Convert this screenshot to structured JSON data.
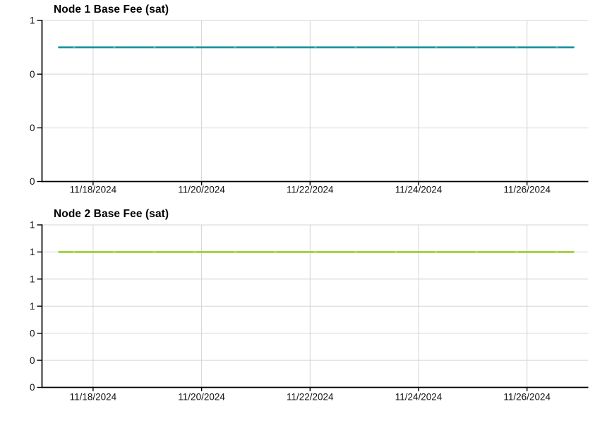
{
  "page": {
    "background_color": "#ffffff",
    "description": "Two stacked line charts of Lightning node base fees over time"
  },
  "colors": {
    "axis": "#000000",
    "gridline": "#d4d4d4",
    "tick_label": "#111111",
    "node1_line": "#12909d",
    "node2_line": "#98cb2f"
  },
  "chart_data": [
    {
      "type": "line",
      "title": "Node 1 Base Fee (sat)",
      "x_tick_labels": [
        "11/18/2024",
        "11/20/2024",
        "11/22/2024",
        "11/24/2024",
        "11/26/2024"
      ],
      "y_axis": {
        "min": 0,
        "max": 0.6,
        "tick_step": 0.2,
        "tick_labels_top_to_bottom": [
          "1",
          "0",
          "0",
          "0"
        ]
      },
      "grid": true,
      "legend_position": "none",
      "series": [
        {
          "name": "Node 1 base fee",
          "color": "#12909d",
          "constant_value": 0.5
        }
      ]
    },
    {
      "type": "line",
      "title": "Node 2 Base Fee (sat)",
      "x_tick_labels": [
        "11/18/2024",
        "11/20/2024",
        "11/22/2024",
        "11/24/2024",
        "11/26/2024"
      ],
      "y_axis": {
        "min": 0,
        "max": 1.2,
        "tick_step": 0.2,
        "tick_labels_top_to_bottom": [
          "1",
          "1",
          "1",
          "1",
          "0",
          "0",
          "0"
        ]
      },
      "grid": true,
      "legend_position": "none",
      "series": [
        {
          "name": "Node 2 base fee",
          "color": "#98cb2f",
          "constant_value": 1
        }
      ]
    }
  ]
}
